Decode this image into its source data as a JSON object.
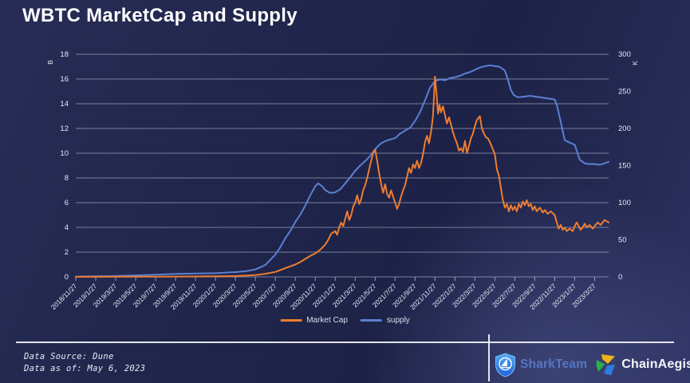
{
  "title": "WBTC MarketCap and Supply",
  "legend": [
    {
      "label": "Market Cap",
      "color": "#ED7D31"
    },
    {
      "label": "supply",
      "color": "#5B80D2"
    }
  ],
  "footer": {
    "source_line": "Data Source: Dune",
    "asof_line": "Data as of: May 6, 2023",
    "brands": [
      {
        "name": "SharkTeam"
      },
      {
        "name": "ChainAegis"
      }
    ]
  },
  "colors": {
    "background": "#20254b",
    "grid": "#c2cbe6",
    "axis_text": "#e4e8f4",
    "market_cap": "#ED7D31",
    "supply": "#5B80D2",
    "shark_shield_light": "#54a9f7",
    "shark_shield_dark": "#1d63d8",
    "shark_text": "#5377c2",
    "aegis_yellow": "#EFB31C",
    "aegis_green": "#2BB14C",
    "aegis_blue": "#2E7BE0"
  },
  "chart_data": {
    "type": "line",
    "title": "WBTC MarketCap and Supply",
    "grid": true,
    "legend_position": "bottom-center",
    "left_axis": {
      "unit": "B",
      "min": 0,
      "max": 18,
      "step": 2
    },
    "right_axis": {
      "unit": "K",
      "min": 0,
      "max": 300,
      "step": 50
    },
    "x_tick_labels": [
      "2018/11/27",
      "2019/1/27",
      "2019/3/27",
      "2019/5/27",
      "2019/7/27",
      "2019/9/27",
      "2019/11/27",
      "2020/1/27",
      "2020/3/27",
      "2020/5/27",
      "2020/7/27",
      "2020/9/27",
      "2020/11/27",
      "2021/1/27",
      "2021/3/27",
      "2021/5/27",
      "2021/7/27",
      "2021/9/27",
      "2021/11/27",
      "2022/1/27",
      "2022/3/27",
      "2022/5/27",
      "2022/7/27",
      "2022/9/27",
      "2022/11/27",
      "2023/1/27",
      "2023/3/27"
    ],
    "months_per_tick": 2,
    "x_range_months": [
      0,
      53.4
    ],
    "series": [
      {
        "name": "supply",
        "axis": "right",
        "color": "#5B80D2",
        "points": [
          [
            0,
            0.3
          ],
          [
            2,
            0.8
          ],
          [
            4,
            1.2
          ],
          [
            6,
            2
          ],
          [
            8,
            3
          ],
          [
            10,
            4
          ],
          [
            12,
            4.5
          ],
          [
            14,
            5
          ],
          [
            16,
            6.5
          ],
          [
            17,
            7.5
          ],
          [
            18,
            10
          ],
          [
            19,
            16
          ],
          [
            20,
            30
          ],
          [
            20.5,
            40
          ],
          [
            21,
            52
          ],
          [
            21.5,
            62
          ],
          [
            22,
            74
          ],
          [
            22.5,
            84
          ],
          [
            23,
            96
          ],
          [
            23.5,
            110
          ],
          [
            24,
            122
          ],
          [
            24.3,
            126
          ],
          [
            24.7,
            122
          ],
          [
            25,
            117
          ],
          [
            25.5,
            113
          ],
          [
            26,
            114
          ],
          [
            26.5,
            118
          ],
          [
            27,
            126
          ],
          [
            27.5,
            134
          ],
          [
            28,
            143
          ],
          [
            28.5,
            150
          ],
          [
            29,
            156
          ],
          [
            29.5,
            163
          ],
          [
            30,
            172
          ],
          [
            30.5,
            179
          ],
          [
            31,
            183
          ],
          [
            31.5,
            185
          ],
          [
            32,
            187
          ],
          [
            32.5,
            193
          ],
          [
            33,
            197
          ],
          [
            33.5,
            201
          ],
          [
            34,
            210
          ],
          [
            34.5,
            222
          ],
          [
            35,
            238
          ],
          [
            35.5,
            255
          ],
          [
            36,
            264
          ],
          [
            36.5,
            266
          ],
          [
            37,
            265
          ],
          [
            37.5,
            268
          ],
          [
            38,
            269
          ],
          [
            38.5,
            271
          ],
          [
            39,
            274
          ],
          [
            39.5,
            276
          ],
          [
            40,
            279
          ],
          [
            40.5,
            282
          ],
          [
            41,
            284
          ],
          [
            41.5,
            285
          ],
          [
            42,
            284
          ],
          [
            42.5,
            283
          ],
          [
            43,
            278
          ],
          [
            43.3,
            266
          ],
          [
            43.6,
            252
          ],
          [
            43.9,
            245
          ],
          [
            44.3,
            242
          ],
          [
            45,
            243
          ],
          [
            45.5,
            244
          ],
          [
            46,
            243
          ],
          [
            46.5,
            242
          ],
          [
            47,
            241
          ],
          [
            47.5,
            240
          ],
          [
            48,
            239
          ],
          [
            48.2,
            232
          ],
          [
            48.5,
            215
          ],
          [
            48.8,
            196
          ],
          [
            49,
            184
          ],
          [
            49.5,
            181
          ],
          [
            50,
            178
          ],
          [
            50.2,
            170
          ],
          [
            50.5,
            158
          ],
          [
            51,
            153
          ],
          [
            51.5,
            152
          ],
          [
            52,
            152
          ],
          [
            52.5,
            151
          ],
          [
            53,
            153
          ],
          [
            53.4,
            155
          ]
        ]
      },
      {
        "name": "Market Cap",
        "axis": "left",
        "color": "#ED7D31",
        "points": [
          [
            0,
            0.005
          ],
          [
            4,
            0.01
          ],
          [
            8,
            0.02
          ],
          [
            12,
            0.03
          ],
          [
            14,
            0.05
          ],
          [
            16,
            0.07
          ],
          [
            17,
            0.1
          ],
          [
            18,
            0.15
          ],
          [
            19,
            0.25
          ],
          [
            20,
            0.4
          ],
          [
            20.5,
            0.55
          ],
          [
            21,
            0.7
          ],
          [
            21.5,
            0.85
          ],
          [
            22,
            1.0
          ],
          [
            22.5,
            1.2
          ],
          [
            23,
            1.45
          ],
          [
            23.5,
            1.7
          ],
          [
            24,
            1.9
          ],
          [
            24.5,
            2.2
          ],
          [
            25,
            2.6
          ],
          [
            25.3,
            3.0
          ],
          [
            25.6,
            3.5
          ],
          [
            26,
            3.7
          ],
          [
            26.2,
            3.4
          ],
          [
            26.4,
            4.0
          ],
          [
            26.6,
            4.4
          ],
          [
            26.8,
            4.1
          ],
          [
            27,
            4.7
          ],
          [
            27.2,
            5.3
          ],
          [
            27.4,
            4.6
          ],
          [
            27.6,
            5.0
          ],
          [
            27.8,
            5.7
          ],
          [
            28,
            6.0
          ],
          [
            28.2,
            6.6
          ],
          [
            28.4,
            5.9
          ],
          [
            28.6,
            6.3
          ],
          [
            28.8,
            7.0
          ],
          [
            29,
            7.4
          ],
          [
            29.2,
            8.0
          ],
          [
            29.4,
            8.7
          ],
          [
            29.6,
            9.4
          ],
          [
            29.8,
            10.0
          ],
          [
            30,
            10.3
          ],
          [
            30.2,
            9.4
          ],
          [
            30.4,
            8.4
          ],
          [
            30.6,
            7.5
          ],
          [
            30.8,
            6.8
          ],
          [
            31,
            7.5
          ],
          [
            31.2,
            6.7
          ],
          [
            31.4,
            6.4
          ],
          [
            31.6,
            7.0
          ],
          [
            31.8,
            6.5
          ],
          [
            32,
            6.0
          ],
          [
            32.2,
            5.5
          ],
          [
            32.4,
            5.9
          ],
          [
            32.6,
            6.5
          ],
          [
            32.8,
            7.0
          ],
          [
            33,
            7.4
          ],
          [
            33.2,
            8.1
          ],
          [
            33.4,
            8.8
          ],
          [
            33.6,
            8.4
          ],
          [
            33.8,
            9.1
          ],
          [
            34,
            8.8
          ],
          [
            34.2,
            9.4
          ],
          [
            34.4,
            8.8
          ],
          [
            34.6,
            9.2
          ],
          [
            34.8,
            9.9
          ],
          [
            35,
            10.9
          ],
          [
            35.2,
            11.4
          ],
          [
            35.4,
            10.8
          ],
          [
            35.6,
            11.7
          ],
          [
            35.8,
            13.0
          ],
          [
            36,
            16.2
          ],
          [
            36.15,
            14.8
          ],
          [
            36.3,
            13.2
          ],
          [
            36.45,
            13.9
          ],
          [
            36.6,
            13.3
          ],
          [
            36.8,
            13.8
          ],
          [
            37,
            13.1
          ],
          [
            37.2,
            12.4
          ],
          [
            37.4,
            12.9
          ],
          [
            37.6,
            12.3
          ],
          [
            37.8,
            11.7
          ],
          [
            38,
            11.2
          ],
          [
            38.2,
            10.8
          ],
          [
            38.4,
            10.2
          ],
          [
            38.6,
            10.4
          ],
          [
            38.8,
            10.1
          ],
          [
            39,
            11.0
          ],
          [
            39.2,
            10.0
          ],
          [
            39.4,
            10.6
          ],
          [
            39.6,
            11.2
          ],
          [
            39.8,
            11.6
          ],
          [
            40,
            12.2
          ],
          [
            40.2,
            12.7
          ],
          [
            40.5,
            13.0
          ],
          [
            40.7,
            12.0
          ],
          [
            40.9,
            11.6
          ],
          [
            41.1,
            11.3
          ],
          [
            41.3,
            11.2
          ],
          [
            41.5,
            10.9
          ],
          [
            41.8,
            10.3
          ],
          [
            42,
            9.9
          ],
          [
            42.2,
            8.7
          ],
          [
            42.4,
            8.2
          ],
          [
            42.6,
            7.2
          ],
          [
            42.8,
            6.2
          ],
          [
            43,
            5.6
          ],
          [
            43.2,
            5.9
          ],
          [
            43.4,
            5.3
          ],
          [
            43.6,
            5.8
          ],
          [
            43.8,
            5.4
          ],
          [
            44,
            5.7
          ],
          [
            44.2,
            5.3
          ],
          [
            44.4,
            5.9
          ],
          [
            44.6,
            5.6
          ],
          [
            44.8,
            6.1
          ],
          [
            45,
            5.8
          ],
          [
            45.2,
            6.2
          ],
          [
            45.4,
            5.7
          ],
          [
            45.6,
            5.9
          ],
          [
            45.8,
            5.4
          ],
          [
            46,
            5.7
          ],
          [
            46.2,
            5.3
          ],
          [
            46.5,
            5.6
          ],
          [
            46.8,
            5.2
          ],
          [
            47,
            5.4
          ],
          [
            47.3,
            5.1
          ],
          [
            47.6,
            5.3
          ],
          [
            48,
            5.0
          ],
          [
            48.2,
            4.4
          ],
          [
            48.4,
            3.9
          ],
          [
            48.6,
            4.2
          ],
          [
            48.8,
            3.8
          ],
          [
            49,
            4.0
          ],
          [
            49.2,
            3.7
          ],
          [
            49.5,
            3.9
          ],
          [
            49.8,
            3.7
          ],
          [
            50,
            4.1
          ],
          [
            50.2,
            4.4
          ],
          [
            50.4,
            4.1
          ],
          [
            50.6,
            3.8
          ],
          [
            50.8,
            4.0
          ],
          [
            51,
            4.3
          ],
          [
            51.2,
            4.0
          ],
          [
            51.5,
            4.2
          ],
          [
            51.8,
            3.9
          ],
          [
            52,
            4.1
          ],
          [
            52.3,
            4.4
          ],
          [
            52.6,
            4.2
          ],
          [
            52.8,
            4.4
          ],
          [
            53,
            4.6
          ],
          [
            53.4,
            4.4
          ]
        ]
      }
    ]
  }
}
